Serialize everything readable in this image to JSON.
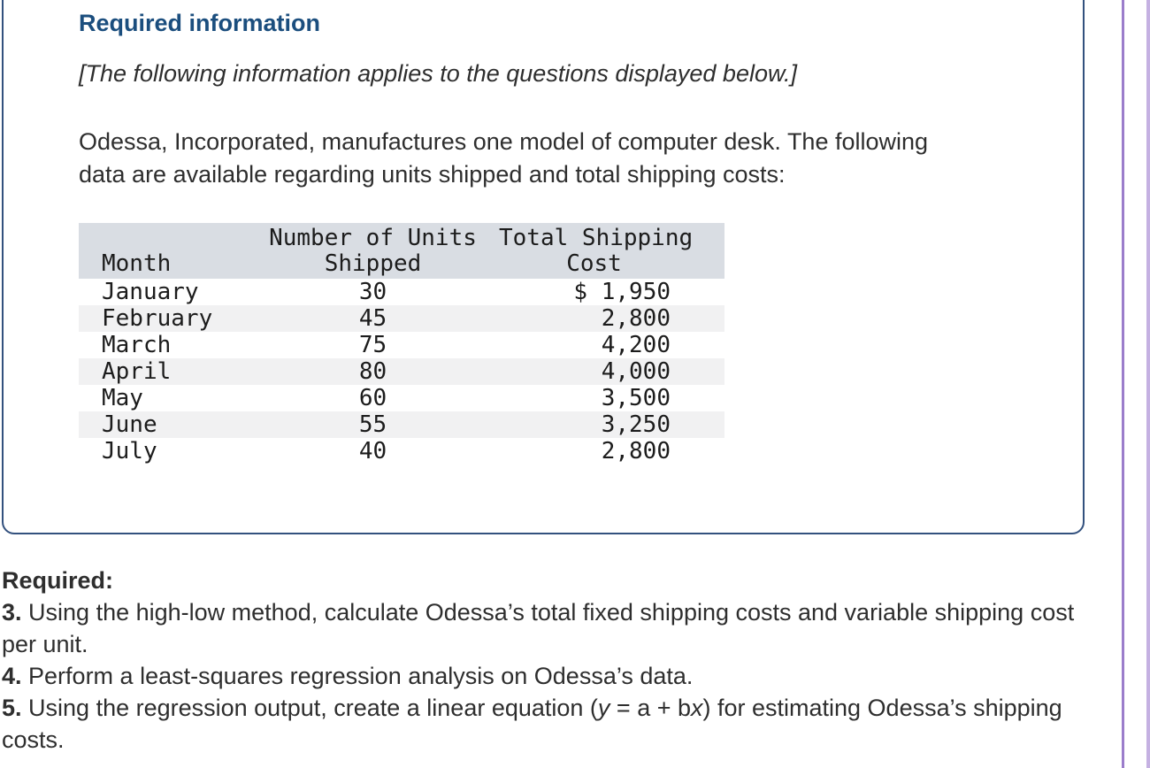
{
  "colors": {
    "heading_blue": "#1b4e7e",
    "panel_border": "#33517e",
    "table_header_bg": "#d9dde3",
    "row_stripe_bg": "#f1f1f2",
    "divider_purple": "#9b7dcb",
    "body_text": "#2e2e2e"
  },
  "panel": {
    "heading": "Required information",
    "note": "[The following information applies to the questions displayed below.]",
    "intro": "Odessa, Incorporated, manufactures one model of computer desk. The following data are available regarding units shipped and total shipping costs:",
    "table": {
      "headers": {
        "month": "Month",
        "units_line1": "Number of Units",
        "units_line2": "Shipped",
        "cost_line1": "Total Shipping",
        "cost_line2": "Cost"
      },
      "rows": [
        {
          "month": "January",
          "units": "30",
          "cost": "$ 1,950"
        },
        {
          "month": "February",
          "units": "45",
          "cost": "2,800"
        },
        {
          "month": "March",
          "units": "75",
          "cost": "4,200"
        },
        {
          "month": "April",
          "units": "80",
          "cost": "4,000"
        },
        {
          "month": "May",
          "units": "60",
          "cost": "3,500"
        },
        {
          "month": "June",
          "units": "55",
          "cost": "3,250"
        },
        {
          "month": "July",
          "units": "40",
          "cost": "2,800"
        }
      ]
    }
  },
  "required": {
    "label": "Required:",
    "item3": {
      "num": "3.",
      "text": " Using the high-low method, calculate Odessa’s total fixed shipping costs and variable shipping cost per unit."
    },
    "item4": {
      "num": "4.",
      "text": " Perform a least-squares regression analysis on Odessa’s data."
    },
    "item5": {
      "num": "5.",
      "pre": " Using the regression output, create a linear equation (",
      "var_y": "y",
      "mid": " = a + b",
      "var_x": "x",
      "post": ") for estimating Odessa’s shipping costs."
    }
  }
}
